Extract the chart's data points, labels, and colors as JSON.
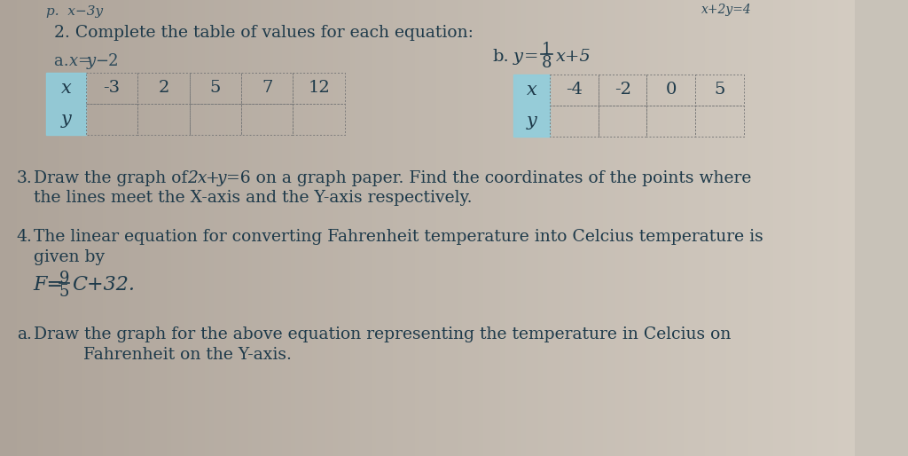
{
  "page_bg_left": "#b8b0a8",
  "page_bg_right": "#d0ccc4",
  "page_bg_mid": "#cdc7be",
  "text_color": "#2d4a5a",
  "top_left_text": "p.  x−3y",
  "top_right_text": "x+2y=4",
  "main_instruction": "2. Complete the table of values for each equation:",
  "eq_a_label_num": "a.",
  "eq_a_eq": "x=y−2",
  "eq_b_label": "b.",
  "table_a_header_color": "#8ecfdf",
  "table_b_header_color": "#8ecfdf",
  "table_a_x_vals": [
    "-3",
    "2",
    "5",
    "7",
    "12"
  ],
  "table_b_x_vals": [
    "-4",
    "-2",
    "0",
    "5"
  ],
  "item3_line1": "3. Draw the graph of 2x+y=6 on a graph paper. Find the coordinates of the points where",
  "item3_line2": "    the lines meet the X-axis and the Y-axis respectively.",
  "item4_line1": "4. The linear equation for converting Fahrenheit temperature into Celcius temperature is",
  "item4_line2": "   given by",
  "item4a_line1": "a. Draw the graph for the above equation representing the temperature in Celcius on",
  "item4a_line2": "              Fahrenheit on the Y-axis."
}
